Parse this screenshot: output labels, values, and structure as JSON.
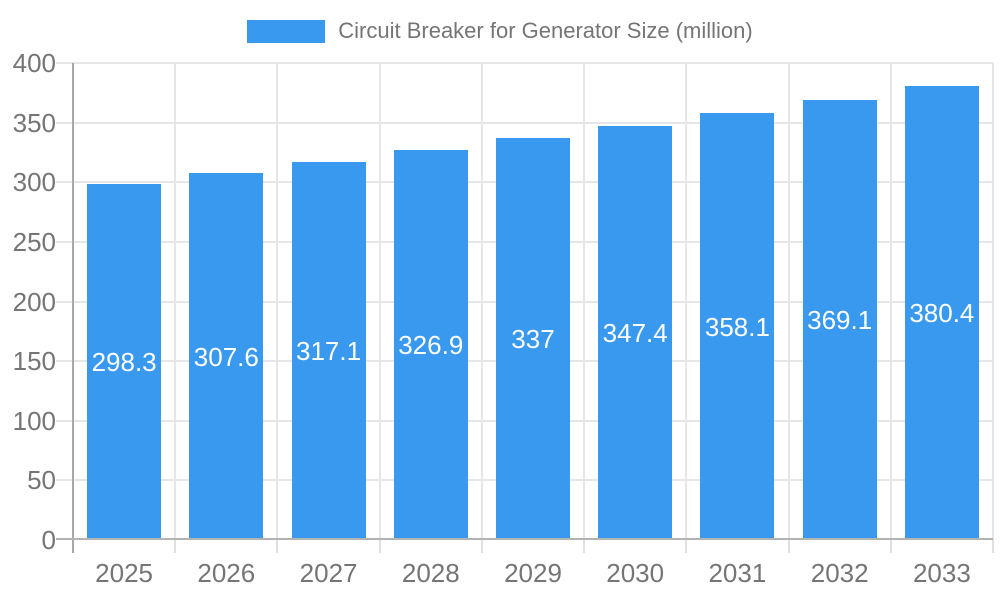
{
  "chart_data": {
    "type": "bar",
    "title": "Circuit Breaker for Generator Size (million)",
    "legend_position": "top",
    "categories": [
      "2025",
      "2026",
      "2027",
      "2028",
      "2029",
      "2030",
      "2031",
      "2032",
      "2033"
    ],
    "series": [
      {
        "name": "Circuit Breaker for Generator Size (million)",
        "values": [
          298.3,
          307.6,
          317.1,
          326.9,
          337,
          347.4,
          358.1,
          369.1,
          380.4
        ],
        "value_labels": [
          "298.3",
          "307.6",
          "317.1",
          "326.9",
          "337",
          "347.4",
          "358.1",
          "369.1",
          "380.4"
        ]
      }
    ],
    "xlabel": "",
    "ylabel": "",
    "ylim": [
      0,
      400
    ],
    "yticks": [
      0,
      50,
      100,
      150,
      200,
      250,
      300,
      350,
      400
    ],
    "grid": true,
    "colors": {
      "bar": "#3999ee",
      "title_text": "#757575",
      "axis_text": "#757575",
      "bar_label_text": "#ffffff",
      "gridline": "#e6e6e6",
      "tick": "#e0e0e0",
      "baseline": "#b3b3b3",
      "axis_line": "#a8a8a8",
      "background": "#ffffff"
    }
  }
}
